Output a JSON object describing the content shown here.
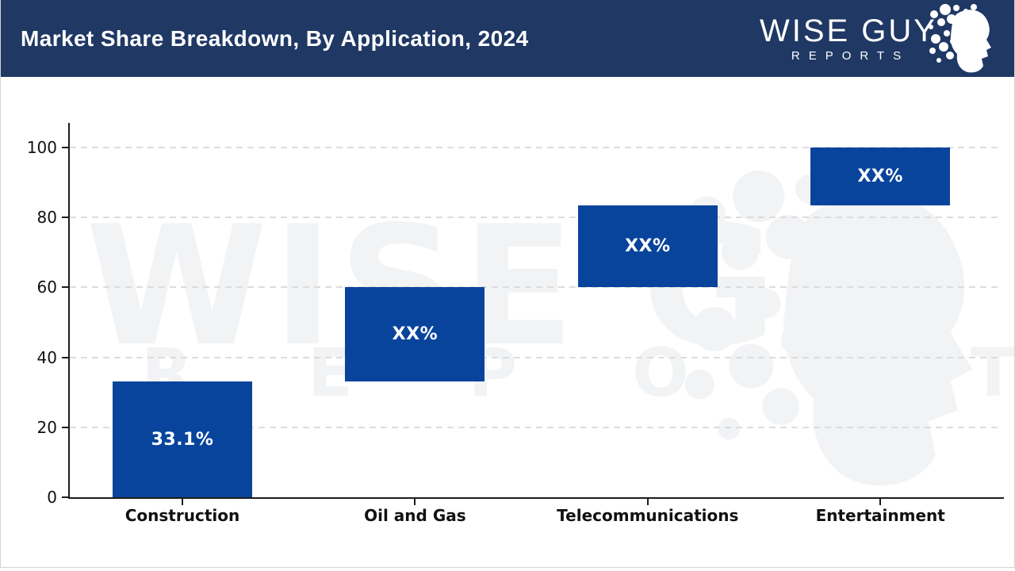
{
  "header": {
    "title": "Market Share Breakdown, By Application, 2024",
    "bg_color": "#1f3864",
    "logo": {
      "line1": "WISE GUY",
      "line2": "REPORTS"
    }
  },
  "watermark": {
    "line1": "WISE GU",
    "line2": "R E P O R T S"
  },
  "chart_data": {
    "type": "bar",
    "subtype": "waterfall",
    "title": "Market Share Breakdown, By Application, 2024",
    "xlabel": "",
    "ylabel": "",
    "categories": [
      "Construction",
      "Oil and Gas",
      "Telecommunications",
      "Entertainment"
    ],
    "segments": [
      {
        "category": "Construction",
        "start": 0,
        "end": 33.1,
        "label": "33.1%"
      },
      {
        "category": "Oil and Gas",
        "start": 33.1,
        "end": 60.0,
        "label": "XX%"
      },
      {
        "category": "Telecommunications",
        "start": 60.0,
        "end": 83.4,
        "label": "XX%"
      },
      {
        "category": "Entertainment",
        "start": 83.4,
        "end": 100.0,
        "label": "XX%"
      }
    ],
    "yticks": [
      0,
      20,
      40,
      60,
      80,
      100
    ],
    "ylim": [
      0,
      100
    ],
    "grid": "horizontal-dashed",
    "legend": "none",
    "bar_color": "#08449c",
    "bar_label_color": "#ffffff"
  }
}
